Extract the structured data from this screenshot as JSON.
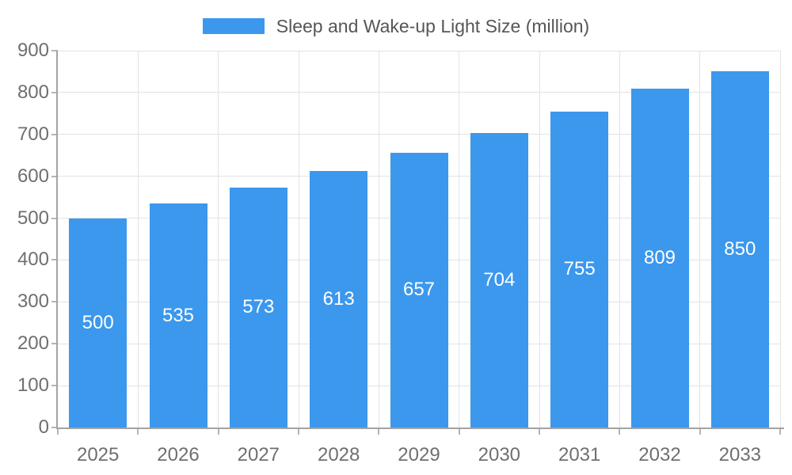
{
  "legend": {
    "label": "Sleep and Wake-up Light Size (million)"
  },
  "chart_data": {
    "type": "bar",
    "title": "Sleep and Wake-up Light Size (million)",
    "categories": [
      "2025",
      "2026",
      "2027",
      "2028",
      "2029",
      "2030",
      "2031",
      "2032",
      "2033"
    ],
    "values": [
      500,
      535,
      573,
      613,
      657,
      704,
      755,
      809,
      850
    ],
    "xlabel": "",
    "ylabel": "",
    "ylim": [
      0,
      900
    ],
    "ytick_step": 100,
    "grid": true,
    "legend_position": "top-center",
    "value_labels": "inside-center",
    "colors": {
      "bar": "#3b98ed",
      "value_label": "#ffffff",
      "axis_label": "#6f6f6f",
      "title": "#565656",
      "gridline": "#e3e3e3",
      "axis_line": "#a3a3a3",
      "tick": "#b5b5b5"
    }
  }
}
